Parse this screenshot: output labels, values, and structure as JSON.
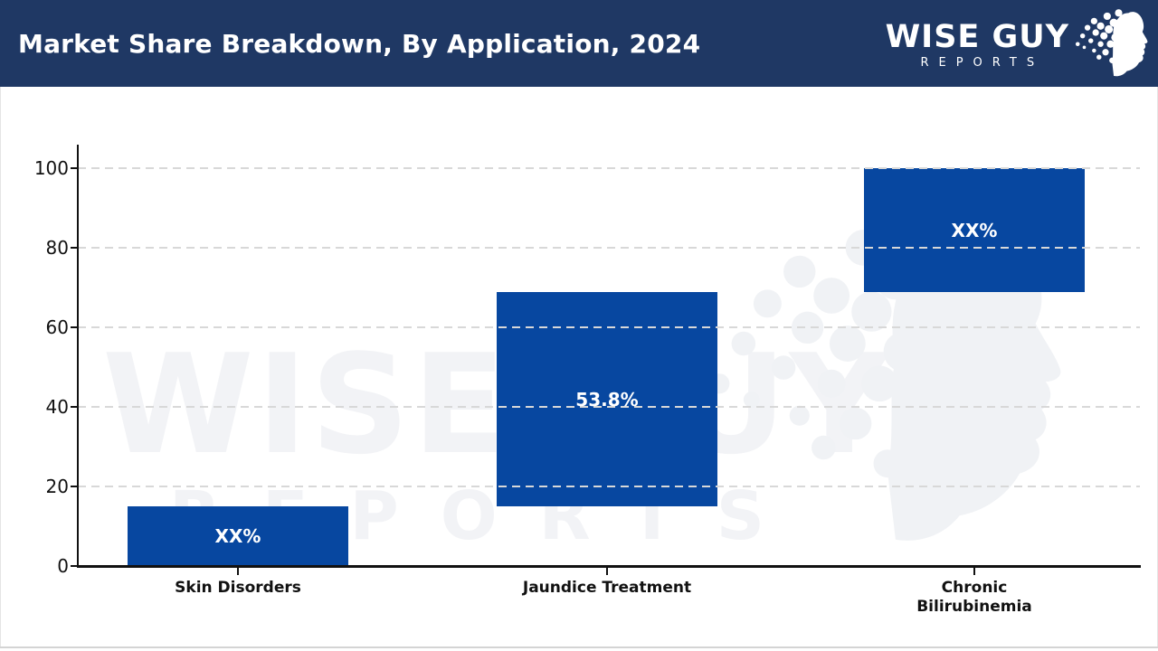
{
  "header": {
    "title": "Market Share Breakdown, By Application, 2024",
    "logo": {
      "brand_line1": "WISE GUY",
      "brand_line2": "REPORTS"
    }
  },
  "watermark": {
    "line1": "WISE GUY",
    "line2": "REPORTS"
  },
  "colors": {
    "header_bg": "#1F3864",
    "header_text": "#FFFFFF",
    "bar": "#0747A0",
    "bar_label": "#FFFFFF",
    "grid": "#D8D8D8",
    "axis": "#111111",
    "watermark": "#F2F3F6"
  },
  "chart_data": {
    "type": "bar",
    "subtype": "floating-waterfall-segments",
    "title": "Market Share Breakdown, By Application, 2024",
    "xlabel": "",
    "ylabel": "",
    "ylim": [
      0,
      100
    ],
    "yticks": [
      0,
      20,
      40,
      60,
      80,
      100
    ],
    "grid": {
      "axis": "y",
      "style": "dashed",
      "on": true
    },
    "legend": "none",
    "categories": [
      "Skin Disorders",
      "Jaundice Treatment",
      "Chronic Bilirubinemia"
    ],
    "bars": [
      {
        "category": "Skin Disorders",
        "start": 0,
        "end": 15,
        "value_label": "XX%",
        "estimated_size_pct": 15
      },
      {
        "category": "Jaundice Treatment",
        "start": 15,
        "end": 68.8,
        "value_label": "53.8%",
        "estimated_size_pct": 53.8
      },
      {
        "category": "Chronic Bilirubinemia",
        "start": 68.8,
        "end": 100,
        "value_label": "XX%",
        "estimated_size_pct": 31.2
      }
    ]
  }
}
